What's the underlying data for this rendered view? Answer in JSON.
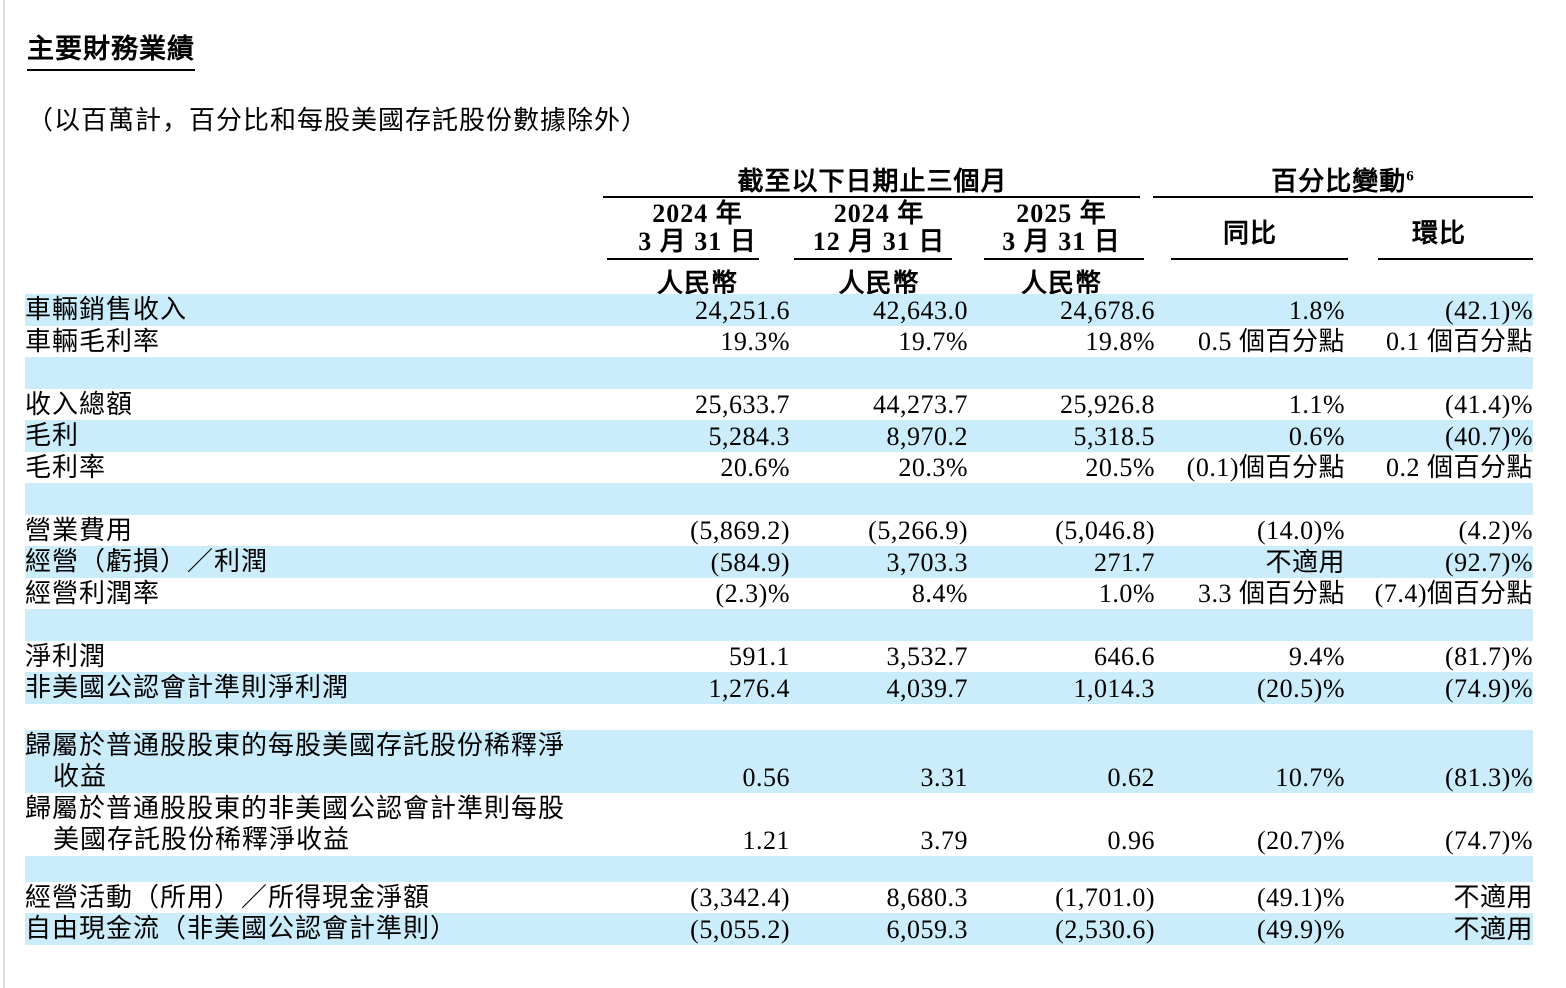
{
  "document": {
    "title": "主要財務業績",
    "subtitle": "（以百萬計，百分比和每股美國存託股份數據除外）"
  },
  "table": {
    "group_headers": {
      "period_label": "截至以下日期止三個月",
      "change_label": "百分比變動",
      "change_footnote_ref": "6"
    },
    "date_columns": [
      {
        "year_line": "2024 年",
        "date_line": "3 月 31 日",
        "currency": "人民幣"
      },
      {
        "year_line": "2024 年",
        "date_line": "12 月 31 日",
        "currency": "人民幣"
      },
      {
        "year_line": "2025 年",
        "date_line": "3 月 31 日",
        "currency": "人民幣"
      }
    ],
    "change_columns": [
      {
        "label": "同比"
      },
      {
        "label": "環比"
      }
    ],
    "rows": [
      {
        "label": "車輛銷售收入",
        "values": [
          "24,251.6",
          "42,643.0",
          "24,678.6",
          "1.8%",
          "(42.1)%"
        ],
        "shaded": true
      },
      {
        "label": "車輛毛利率",
        "values": [
          "19.3%",
          "19.7%",
          "19.8%",
          "0.5 個百分點",
          "0.1 個百分點"
        ],
        "shaded": false
      },
      {
        "blank": true,
        "shaded": true
      },
      {
        "label": "收入總額",
        "values": [
          "25,633.7",
          "44,273.7",
          "25,926.8",
          "1.1%",
          "(41.4)%"
        ],
        "shaded": false
      },
      {
        "label": "毛利",
        "values": [
          "5,284.3",
          "8,970.2",
          "5,318.5",
          "0.6%",
          "(40.7)%"
        ],
        "shaded": true
      },
      {
        "label": "毛利率",
        "values": [
          "20.6%",
          "20.3%",
          "20.5%",
          "(0.1)個百分點",
          "0.2 個百分點"
        ],
        "shaded": false
      },
      {
        "blank": true,
        "shaded": true
      },
      {
        "label": "營業費用",
        "values": [
          "(5,869.2)",
          "(5,266.9)",
          "(5,046.8)",
          "(14.0)%",
          "(4.2)%"
        ],
        "shaded": false
      },
      {
        "label": "經營（虧損）／利潤",
        "values": [
          "(584.9)",
          "3,703.3",
          "271.7",
          "不適用",
          "(92.7)%"
        ],
        "shaded": true
      },
      {
        "label": "經營利潤率",
        "values": [
          "(2.3)%",
          "8.4%",
          "1.0%",
          "3.3 個百分點",
          "(7.4)個百分點"
        ],
        "shaded": false
      },
      {
        "blank": true,
        "shaded": true
      },
      {
        "label": "淨利潤",
        "values": [
          "591.1",
          "3,532.7",
          "646.6",
          "9.4%",
          "(81.7)%"
        ],
        "shaded": false
      },
      {
        "label": "非美國公認會計準則淨利潤",
        "values": [
          "1,276.4",
          "4,039.7",
          "1,014.3",
          "(20.5)%",
          "(74.9)%"
        ],
        "shaded": true
      },
      {
        "blank": true,
        "shaded": false,
        "small": true
      },
      {
        "label": "歸屬於普通股股東的每股美國存託股份稀釋淨",
        "label2": "收益",
        "values": [
          "0.56",
          "3.31",
          "0.62",
          "10.7%",
          "(81.3)%"
        ],
        "shaded": true
      },
      {
        "label": "歸屬於普通股股東的非美國公認會計準則每股",
        "label2": "美國存託股份稀釋淨收益",
        "values": [
          "1.21",
          "3.79",
          "0.96",
          "(20.7)%",
          "(74.7)%"
        ],
        "shaded": false
      },
      {
        "blank": true,
        "shaded": true,
        "small": true
      },
      {
        "label": "經營活動（所用）／所得現金淨額",
        "values": [
          "(3,342.4)",
          "8,680.3",
          "(1,701.0)",
          "(49.1)%",
          "不適用"
        ],
        "shaded": false
      },
      {
        "label": "自由現金流（非美國公認會計準則）",
        "values": [
          "(5,055.2)",
          "6,059.3",
          "(2,530.6)",
          "(49.9)%",
          "不適用"
        ],
        "shaded": true
      }
    ]
  },
  "colors": {
    "stripe_blue": "#cbecfa",
    "text": "#000000",
    "rule": "#000000",
    "page_edge_line": "#dcdcdc"
  }
}
